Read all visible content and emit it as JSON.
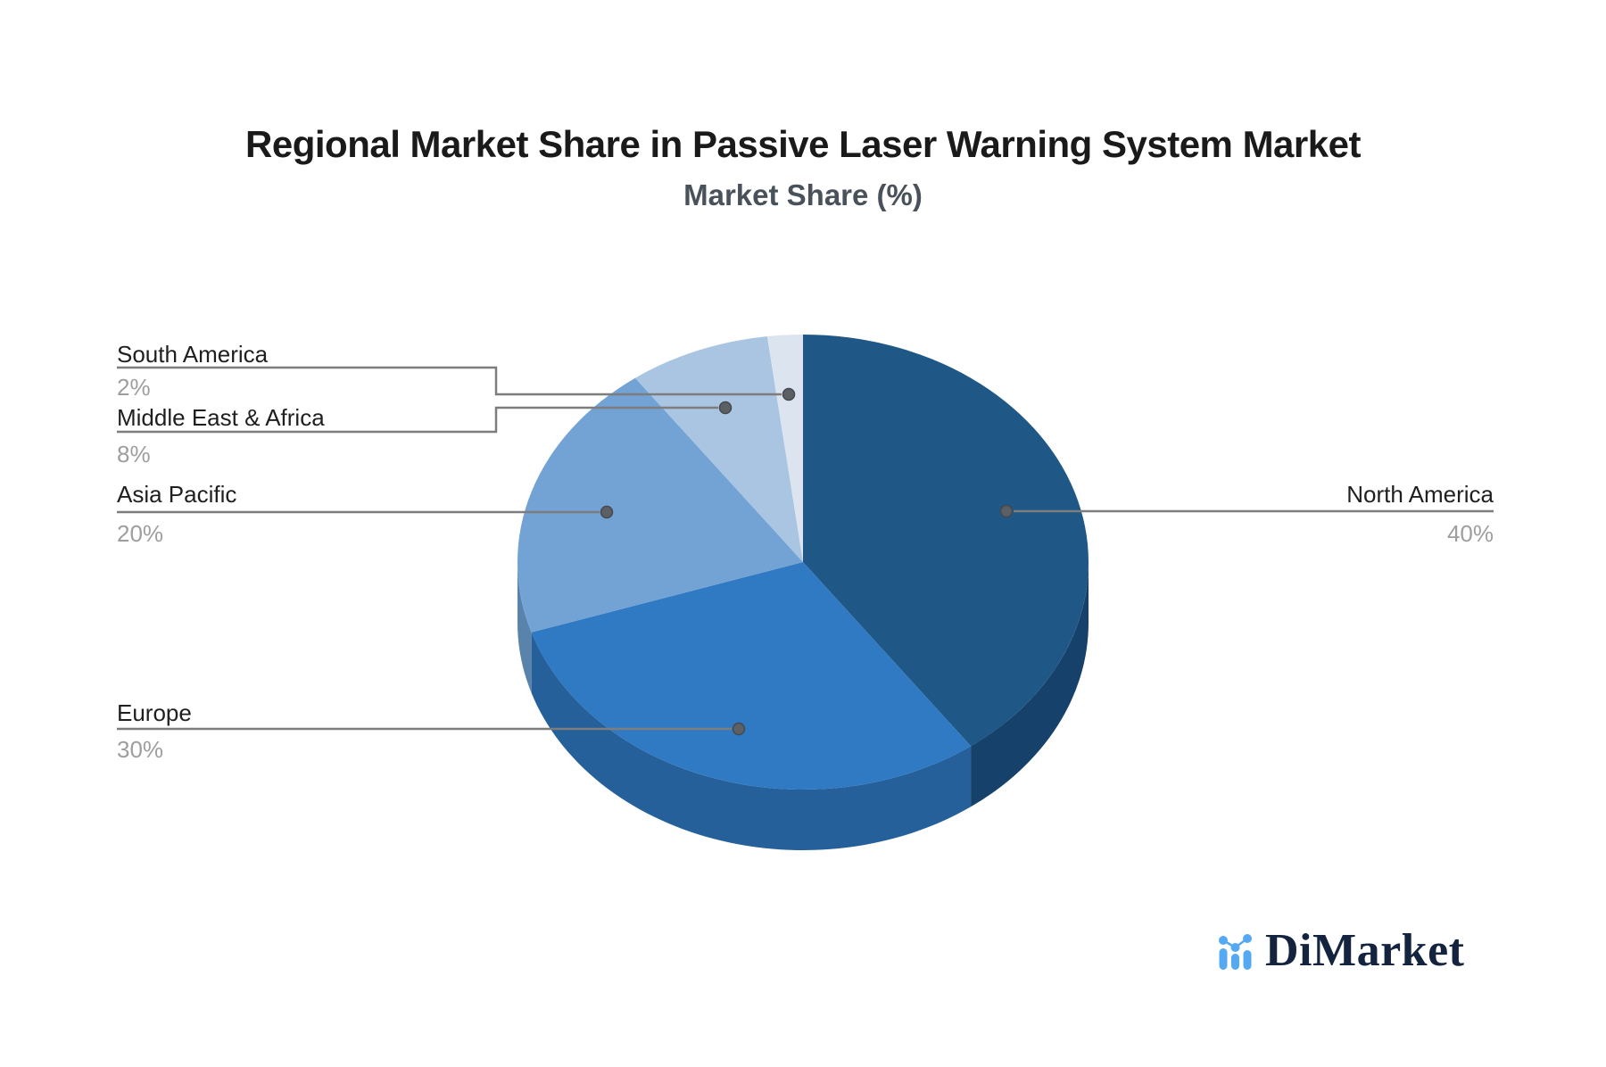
{
  "chart_data": {
    "type": "pie",
    "title": "Regional Market Share in Passive Laser Warning System Market",
    "subtitle": "Market Share (%)",
    "start_angle_deg": 0,
    "direction": "clockwise",
    "effect_3d": true,
    "legend": "none",
    "slices": [
      {
        "label": "North America",
        "value": 40,
        "pct_label": "40%",
        "color": "#1F5886",
        "side_color": "#16416B"
      },
      {
        "label": "Europe",
        "value": 30,
        "pct_label": "30%",
        "color": "#2F7AC3",
        "side_color": "#25609A"
      },
      {
        "label": "Asia Pacific",
        "value": 20,
        "pct_label": "20%",
        "color": "#73A3D4",
        "side_color": "#5A83AC"
      },
      {
        "label": "Middle East & Africa",
        "value": 8,
        "pct_label": "8%",
        "color": "#A9C5E2",
        "side_color": "#8FABC9"
      },
      {
        "label": "South America",
        "value": 2,
        "pct_label": "2%",
        "color": "#DCE4F0",
        "side_color": "#BDC9DB"
      }
    ],
    "colors": {
      "title_text": "#1a1a1a",
      "subtitle_text": "#49525b",
      "slice_label_text": "#1f1f1f",
      "pct_label_text": "#9e9e9e",
      "leader_line": "#7d7d7d",
      "leader_dot": "#5c5f63",
      "background": "#ffffff"
    }
  },
  "logo": {
    "text": "DiMarket",
    "icon": "bar-chart-trend-icon",
    "icon_color": "#54A9F2",
    "text_color": "#14243f"
  }
}
